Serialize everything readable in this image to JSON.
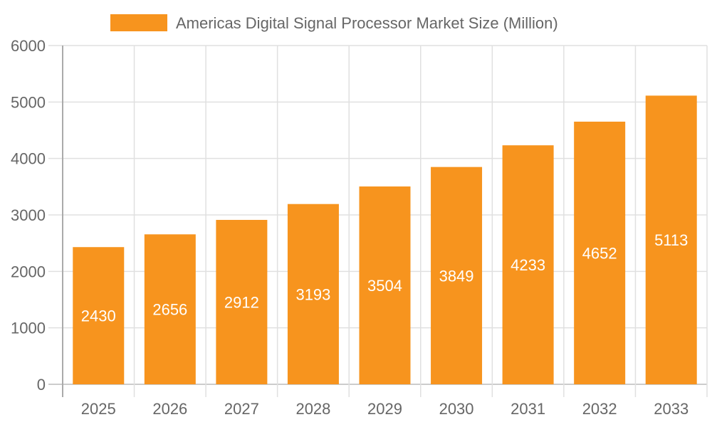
{
  "chart_data": {
    "type": "bar",
    "title": "",
    "xlabel": "",
    "ylabel": "",
    "categories": [
      "2025",
      "2026",
      "2027",
      "2028",
      "2029",
      "2030",
      "2031",
      "2032",
      "2033"
    ],
    "series": [
      {
        "name": "Americas Digital Signal Processor Market Size (Million)",
        "values": [
          2430,
          2656,
          2912,
          3193,
          3504,
          3849,
          4233,
          4652,
          5113
        ],
        "color": "#F7941E"
      }
    ],
    "ylim": [
      0,
      6000
    ],
    "yticks": [
      0,
      1000,
      2000,
      3000,
      4000,
      5000,
      6000
    ],
    "grid": true,
    "legend": "top",
    "data_labels": true
  }
}
